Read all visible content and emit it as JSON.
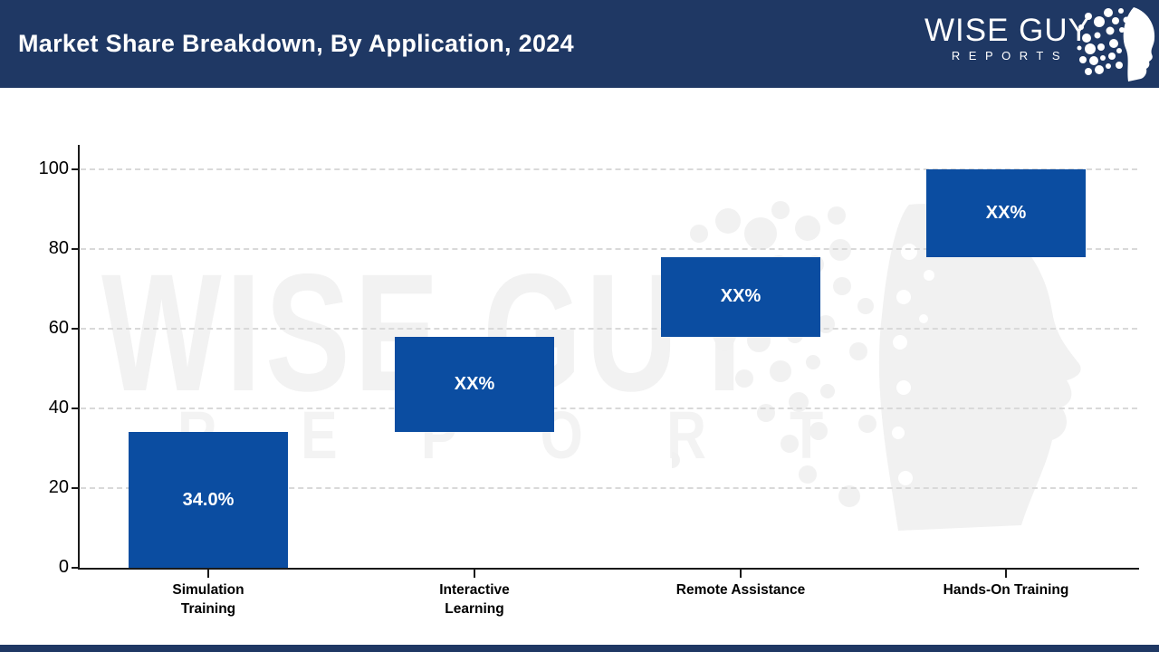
{
  "header": {
    "title": "Market Share Breakdown, By Application, 2024",
    "logo_line1": "WISE GUY",
    "logo_line2": "REPORTS"
  },
  "watermark": {
    "line1": "WISE GUY",
    "line2": "R E P O R T S"
  },
  "chart_data": {
    "type": "bar",
    "subtype": "waterfall",
    "title": "Market Share Breakdown, By Application, 2024",
    "categories": [
      "Simulation Training",
      "Interactive Learning",
      "Remote Assistance",
      "Hands-On Training"
    ],
    "category_label_lines": [
      [
        "Simulation",
        "Training"
      ],
      [
        "Interactive",
        "Learning"
      ],
      [
        "Remote Assistance"
      ],
      [
        "Hands-On Training"
      ]
    ],
    "segments": [
      {
        "category": "Simulation Training",
        "from": 0,
        "to": 34,
        "increment": 34,
        "label": "34.0%"
      },
      {
        "category": "Interactive Learning",
        "from": 34,
        "to": 58,
        "increment": 24,
        "label": "XX%"
      },
      {
        "category": "Remote Assistance",
        "from": 58,
        "to": 78,
        "increment": 20,
        "label": "XX%"
      },
      {
        "category": "Hands-On Training",
        "from": 78,
        "to": 100,
        "increment": 22,
        "label": "XX%"
      }
    ],
    "ylim": [
      0,
      100
    ],
    "yticks": [
      0,
      20,
      40,
      60,
      80,
      100
    ],
    "xlabel": "",
    "ylabel": "",
    "grid": "horizontal-dashed",
    "legend": "none",
    "bar_color": "#0b4da1",
    "bar_label_color": "#ffffff"
  },
  "colors": {
    "header_bg": "#1f3864",
    "footer_bg": "#1f3864",
    "bar": "#0b4da1",
    "grid": "#d9d9d9",
    "axis": "#1a1a1a",
    "watermark": "#f2f2f2",
    "background": "#ffffff",
    "title_text": "#ffffff"
  }
}
